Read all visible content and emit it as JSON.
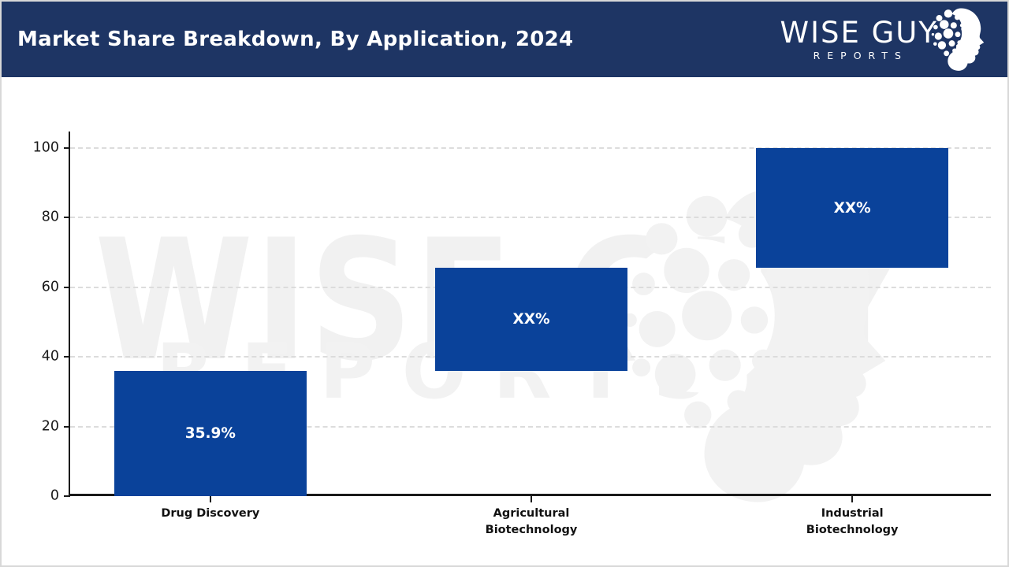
{
  "header": {
    "title": "Market Share Breakdown, By Application, 2024",
    "logo": {
      "wordmark": "WISE GUY",
      "subtitle": "REPORTS"
    }
  },
  "watermark": {
    "line1": "WISE GUY",
    "line2": "REPORTS"
  },
  "colors": {
    "header_bg": "#1e3564",
    "bar": "#0a429a",
    "grid": "#dcdcdc",
    "axis": "#1a1a1a",
    "bar_label_text": "#ffffff",
    "watermark": "#f1f1f1",
    "frame_border": "#d8d8d8"
  },
  "chart_data": {
    "type": "bar",
    "variant": "waterfall-breakdown",
    "title": "Market Share Breakdown, By Application, 2024",
    "categories": [
      "Drug Discovery",
      "Agricultural Biotechnology",
      "Industrial Biotechnology"
    ],
    "category_label_lines": [
      [
        "Drug Discovery"
      ],
      [
        "Agricultural",
        "Biotechnology"
      ],
      [
        "Industrial",
        "Biotechnology"
      ]
    ],
    "segments": [
      {
        "category": "Drug Discovery",
        "start": 0,
        "end": 35.9,
        "label": "35.9%"
      },
      {
        "category": "Agricultural Biotechnology",
        "start": 35.9,
        "end": 65.5,
        "label": "XX%"
      },
      {
        "category": "Industrial Biotechnology",
        "start": 65.5,
        "end": 100,
        "label": "XX%"
      }
    ],
    "ylim": [
      0,
      100
    ],
    "yticks": [
      0,
      20,
      40,
      60,
      80,
      100
    ],
    "gridlines_at": [
      20,
      40,
      60,
      80,
      100
    ],
    "grid": "horizontal-dashed",
    "legend": "none",
    "xlabel": "",
    "ylabel": ""
  }
}
